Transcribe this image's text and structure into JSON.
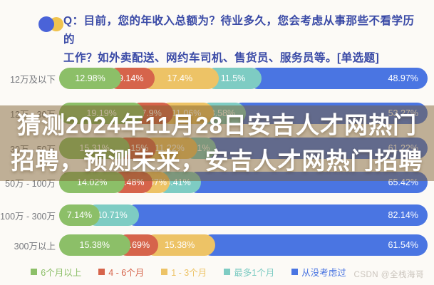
{
  "question": {
    "line1": "Q：目前，您的年收入总额为？待业多久，您会考虑从事那些不看学历的",
    "line2": "工作？如外卖配送、网约车司机、售货员、服务员等。[单选题]"
  },
  "overlay": {
    "line1": "猜测2024年11月28日安吉人才网热门",
    "line2": "招聘，预测未来，安吉人才网热门招聘"
  },
  "watermark": "CSDN @全栈海哥",
  "chart_data": {
    "type": "bar",
    "title": "目前，您的年收入总额为？待业多久，您会考虑从事那些不看学历的工作？如外卖配送、网约车司机、售货员、服务员等。[单选题]",
    "orientation": "horizontal-stacked-100pct",
    "xlim": [
      0,
      100
    ],
    "grid": false,
    "legend_position": "bottom",
    "colors": {
      "green": "#8cbf68",
      "red": "#d6644b",
      "yellow": "#edc366",
      "teal": "#7eccc3",
      "blue": "#4a75e2"
    },
    "legend": [
      {
        "label": "6个月以上",
        "color": "green"
      },
      {
        "label": "4 - 6个月",
        "color": "red"
      },
      {
        "label": "1 - 3个月",
        "color": "yellow"
      },
      {
        "label": "最多1个月",
        "color": "teal"
      },
      {
        "label": "从没考虑过",
        "color": "blue"
      }
    ],
    "categories": [
      "12万及以下",
      "12万 - 30万",
      "30万 - 50万",
      "50万 - 100万",
      "100万 - 300万",
      "300万以上"
    ],
    "rows": [
      {
        "category": "12万及以下",
        "segments": [
          {
            "color": "green",
            "value": 12.98,
            "label": "12.98%"
          },
          {
            "color": "red",
            "value": 9.14,
            "label": "9.14%"
          },
          {
            "color": "yellow",
            "value": 17.4,
            "label": "17.4%"
          },
          {
            "color": "teal",
            "value": 11.5,
            "label": "11.5%"
          },
          {
            "color": "blue",
            "value": 48.97,
            "label": "48.97%"
          }
        ]
      },
      {
        "category": "12万 - 30万",
        "segments": [
          {
            "color": "green",
            "value": 19.19,
            "label": "19.19%"
          },
          {
            "color": "red",
            "value": 7.9,
            "label": "7.9%"
          },
          {
            "color": "yellow",
            "value": 11.06,
            "label": "11.06%"
          },
          {
            "color": "teal",
            "value": 8.58,
            "label": "8.58%"
          },
          {
            "color": "blue",
            "value": 53.27,
            "label": "53.27%"
          }
        ]
      },
      {
        "category": "30万 - 50万",
        "segments": [
          {
            "color": "green",
            "value": 15.31,
            "label": "15.31%"
          },
          {
            "color": "red",
            "value": 7.15,
            "label": "7.15%"
          },
          {
            "color": "yellow",
            "value": 11.22,
            "label": "11.22%"
          },
          {
            "color": "teal",
            "value": 5.1,
            "label": "5.1%"
          },
          {
            "color": "blue",
            "value": 61.22,
            "label": "61.22%"
          }
        ]
      },
      {
        "category": "50万 - 100万",
        "segments": [
          {
            "color": "green",
            "value": 14.02,
            "label": "14.02%"
          },
          {
            "color": "red",
            "value": 7.48,
            "label": "7.48%"
          },
          {
            "color": "yellow",
            "value": 4.67,
            "label": "4.67%"
          },
          {
            "color": "teal",
            "value": 8.41,
            "label": "8.41%"
          },
          {
            "color": "blue",
            "value": 65.42,
            "label": "65.42%"
          }
        ]
      },
      {
        "category": "100万 - 300万",
        "segments": [
          {
            "color": "green",
            "value": 7.14,
            "label": "7.14%"
          },
          {
            "color": "teal",
            "value": 10.71,
            "label": "10.71%"
          },
          {
            "color": "blue",
            "value": 82.14,
            "label": "82.14%"
          }
        ]
      },
      {
        "category": "300万以上",
        "segments": [
          {
            "color": "green",
            "value": 15.38,
            "label": "15.38%"
          },
          {
            "color": "red",
            "value": 7.69,
            "label": "7.69%"
          },
          {
            "color": "yellow",
            "value": 15.38,
            "label": "15.38%"
          },
          {
            "color": "blue",
            "value": 61.54,
            "label": "61.54%"
          }
        ]
      }
    ]
  }
}
